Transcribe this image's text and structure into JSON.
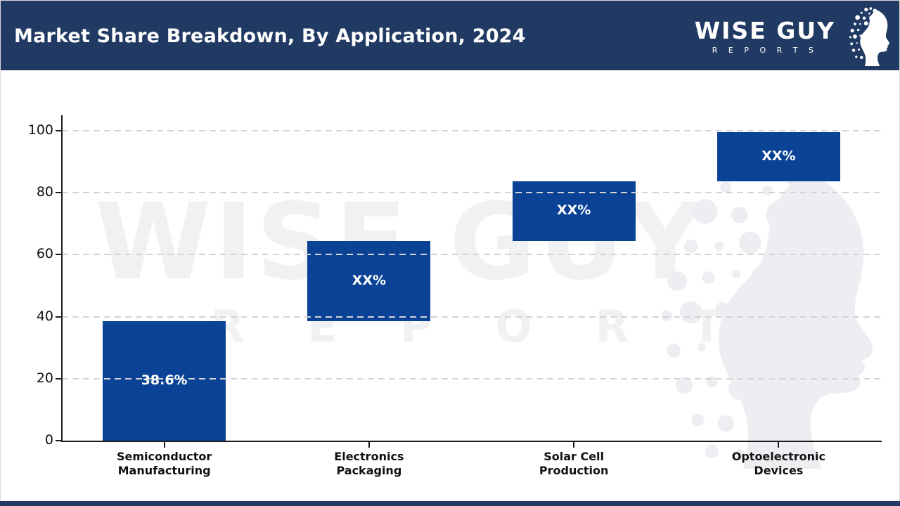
{
  "header": {
    "title": "Market Share Breakdown, By Application, 2024",
    "logo": {
      "wordmark": "WISE GUY",
      "subtext": "R E P O R T S"
    }
  },
  "watermark": {
    "wordmark": "WISE GUY",
    "subtext": "R E P O R T S"
  },
  "colors": {
    "header_bg": "#203a63",
    "footer_bg": "#203a63",
    "bar_blue": "#0a4396",
    "grid_line": "#d4d4d4",
    "axis": "#1a1a1a",
    "bar_label_text": "#ffffff",
    "watermark_gray": "#f1f1f4"
  },
  "chart_data": {
    "type": "bar",
    "subtype": "stacked-waterfall",
    "title": "Market Share Breakdown, By Application, 2024",
    "categories": [
      {
        "line1": "Semiconductor",
        "line2": "Manufacturing"
      },
      {
        "line1": "Electronics",
        "line2": "Packaging"
      },
      {
        "line1": "Solar Cell",
        "line2": "Production"
      },
      {
        "line1": "Optoelectronic",
        "line2": "Devices"
      }
    ],
    "bars": [
      {
        "name": "Semiconductor Manufacturing",
        "start": 0,
        "end": 38.6,
        "label": "38.6%"
      },
      {
        "name": "Electronics Packaging",
        "start": 38.6,
        "end": 64.4,
        "label": "XX%"
      },
      {
        "name": "Solar Cell Production",
        "start": 64.4,
        "end": 83.7,
        "label": "XX%"
      },
      {
        "name": "Optoelectronic Devices",
        "start": 83.7,
        "end": 99.6,
        "label": "XX%"
      }
    ],
    "ylim": [
      0,
      100
    ],
    "yticks": [
      0,
      20,
      40,
      60,
      80,
      100
    ],
    "xlabel": "",
    "ylabel": "",
    "grid": "horizontal-dashed",
    "legend": "none",
    "bar_color": "#0a4396"
  }
}
